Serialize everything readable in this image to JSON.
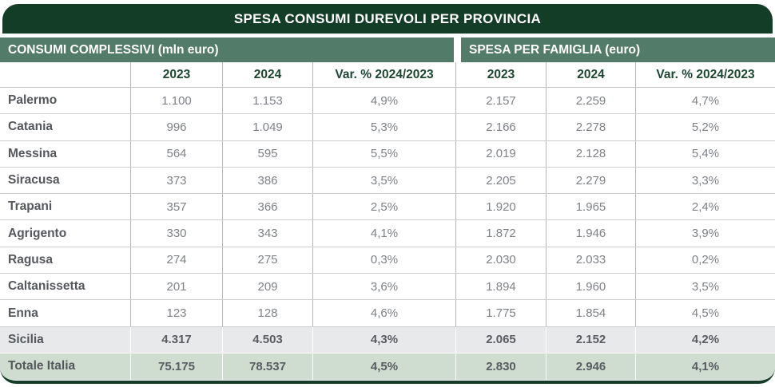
{
  "title": "SPESA CONSUMI DUREVOLI PER PROVINCIA",
  "sections": {
    "left_label": "CONSUMI COMPLESSIVI (mln euro)",
    "right_label": "SPESA PER FAMIGLIA (euro)"
  },
  "columns": {
    "c1": "2023",
    "c2": "2024",
    "c3": "Var. % 2024/2023",
    "c4": "2023",
    "c5": "2024",
    "c6": "Var. % 2024/2023"
  },
  "colors": {
    "title_bar_green": "#133d26",
    "section_band_green": "#527c69",
    "subtotal_row_gray": "#e8e9eb",
    "total_row_green": "#cfddd0",
    "header_text_green": "#1c4631",
    "value_text_gray": "#7e8287",
    "label_text_gray": "#54575c"
  },
  "chart_data": {
    "type": "table",
    "title": "SPESA CONSUMI DUREVOLI PER PROVINCIA",
    "column_groups": [
      {
        "label": "CONSUMI COMPLESSIVI (mln euro)",
        "columns": [
          "2023",
          "2024",
          "Var. % 2024/2023"
        ]
      },
      {
        "label": "SPESA PER FAMIGLIA (euro)",
        "columns": [
          "2023",
          "2024",
          "Var. % 2024/2023"
        ]
      }
    ],
    "rows": [
      {
        "label": "Palermo",
        "row_type": "province",
        "cells": [
          "1.100",
          "1.153",
          "4,9%",
          "2.157",
          "2.259",
          "4,7%"
        ]
      },
      {
        "label": "Catania",
        "row_type": "province",
        "cells": [
          "996",
          "1.049",
          "5,3%",
          "2.166",
          "2.278",
          "5,2%"
        ]
      },
      {
        "label": "Messina",
        "row_type": "province",
        "cells": [
          "564",
          "595",
          "5,5%",
          "2.019",
          "2.128",
          "5,4%"
        ]
      },
      {
        "label": "Siracusa",
        "row_type": "province",
        "cells": [
          "373",
          "386",
          "3,5%",
          "2.205",
          "2.279",
          "3,3%"
        ]
      },
      {
        "label": "Trapani",
        "row_type": "province",
        "cells": [
          "357",
          "366",
          "2,5%",
          "1.920",
          "1.965",
          "2,4%"
        ]
      },
      {
        "label": "Agrigento",
        "row_type": "province",
        "cells": [
          "330",
          "343",
          "4,1%",
          "1.872",
          "1.946",
          "3,9%"
        ]
      },
      {
        "label": "Ragusa",
        "row_type": "province",
        "cells": [
          "274",
          "275",
          "0,3%",
          "2.030",
          "2.033",
          "0,2%"
        ]
      },
      {
        "label": "Caltanissetta",
        "row_type": "province",
        "cells": [
          "201",
          "209",
          "3,6%",
          "1.894",
          "1.960",
          "3,5%"
        ]
      },
      {
        "label": "Enna",
        "row_type": "province",
        "cells": [
          "123",
          "128",
          "4,6%",
          "1.775",
          "1.854",
          "4,5%"
        ]
      },
      {
        "label": "Sicilia",
        "row_type": "region_total",
        "cells": [
          "4.317",
          "4.503",
          "4,3%",
          "2.065",
          "2.152",
          "4,2%"
        ]
      },
      {
        "label": "Totale Italia",
        "row_type": "country_total",
        "cells": [
          "75.175",
          "78.537",
          "4,5%",
          "2.830",
          "2.946",
          "4,1%"
        ]
      }
    ]
  }
}
